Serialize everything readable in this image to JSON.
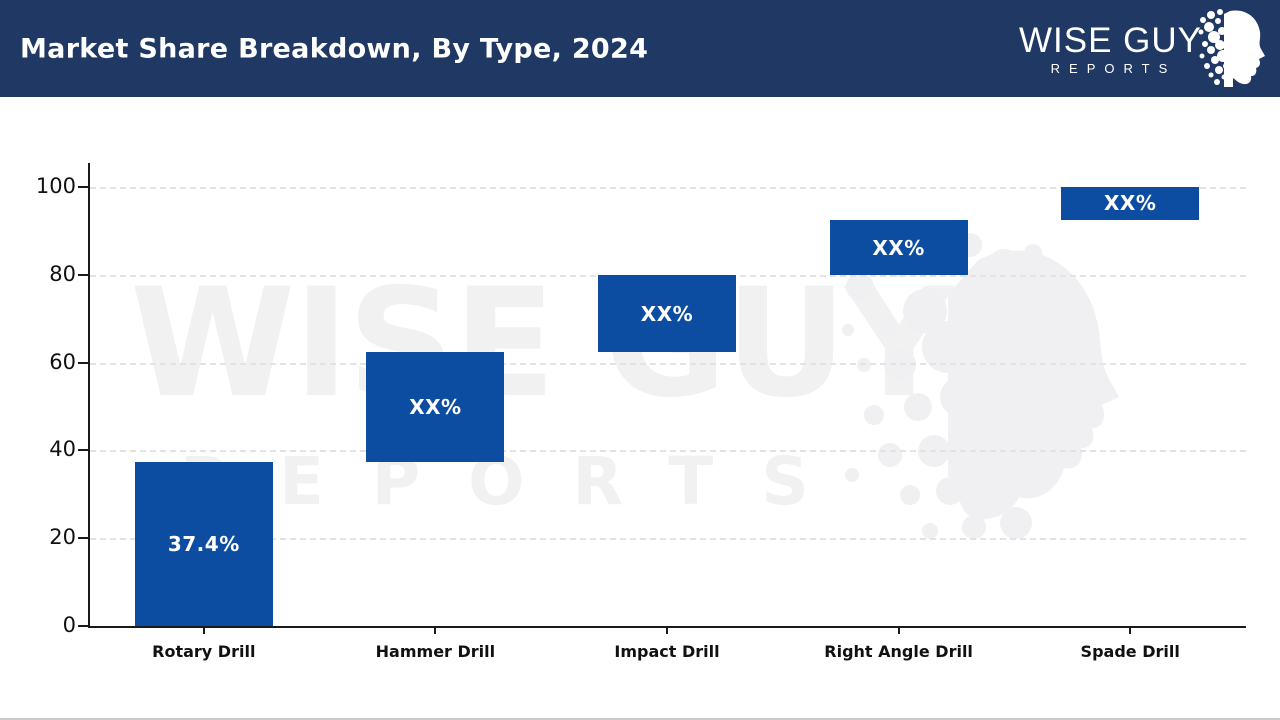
{
  "header": {
    "title": "Market Share Breakdown, By Type, 2024",
    "brand": {
      "name": "WISE GUY",
      "sub": "REPORTS"
    }
  },
  "watermark": {
    "line1": "WISE GUY",
    "line2": "REPORTS"
  },
  "chart_data": {
    "type": "bar",
    "subtype": "waterfall",
    "title": "Market Share Breakdown, By Type, 2024",
    "categories": [
      "Rotary Drill",
      "Hammer Drill",
      "Impact Drill",
      "Right Angle Drill",
      "Spade Drill"
    ],
    "bars": [
      {
        "category": "Rotary Drill",
        "start": 0,
        "end": 37.4,
        "value": 37.4,
        "label": "37.4%"
      },
      {
        "category": "Hammer Drill",
        "start": 37.4,
        "end": 62.4,
        "value": 25.0,
        "label": "XX%"
      },
      {
        "category": "Impact Drill",
        "start": 62.4,
        "end": 79.9,
        "value": 17.5,
        "label": "XX%"
      },
      {
        "category": "Right Angle Drill",
        "start": 79.9,
        "end": 92.5,
        "value": 12.6,
        "label": "XX%"
      },
      {
        "category": "Spade Drill",
        "start": 92.5,
        "end": 100,
        "value": 7.5,
        "label": "XX%"
      }
    ],
    "yticks": [
      0,
      20,
      40,
      60,
      80,
      100
    ],
    "ylim": [
      0,
      105
    ],
    "xlabel": "",
    "ylabel": "",
    "grid": "horizontal-dashed",
    "legend": "none",
    "bar_color": "#0c4da2",
    "label_color": "#ffffff"
  },
  "colors": {
    "header_bg": "#1f3864",
    "bar": "#0c4da2",
    "axis": "#1a1a1a",
    "grid": "#e3e3e3",
    "watermark": "#f1f1f2",
    "bottom_line": "#cbcbcb"
  }
}
